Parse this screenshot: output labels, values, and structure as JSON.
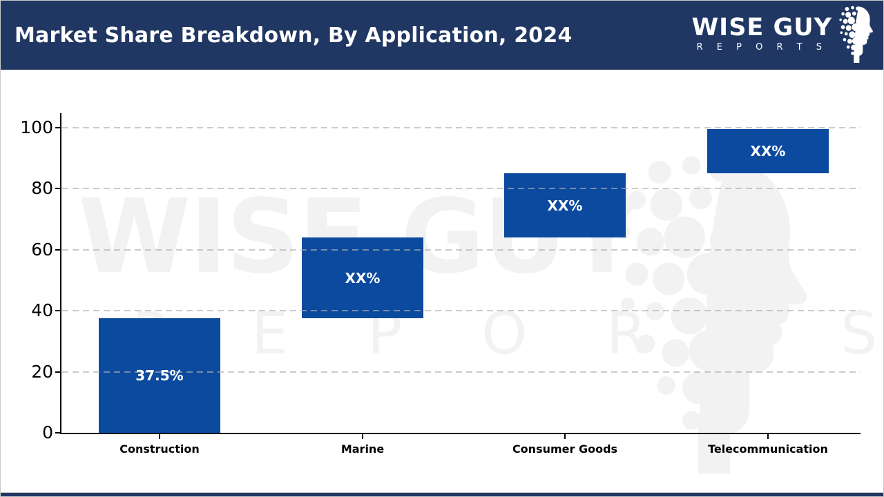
{
  "header": {
    "title": "Market Share Breakdown, By Application, 2024",
    "logo": {
      "line1": "WISE GUY",
      "line2": "R E P O R T S"
    }
  },
  "watermark": {
    "line1": "WISE GUY",
    "line2": "R E P O R T S"
  },
  "colors": {
    "header_bg": "#203763",
    "footer_bg": "#203763",
    "bar": "#0b4a9e",
    "bar_label": "#ffffff",
    "axis": "#000000",
    "tick_label": "#000000",
    "grid": "#c4c4c4",
    "watermark": "#f2f2f2"
  },
  "chart_data": {
    "type": "bar",
    "subtype": "waterfall-floating-bars",
    "title": "Market Share Breakdown, By Application, 2024",
    "categories": [
      "Construction",
      "Marine",
      "Consumer Goods",
      "Telecommunication"
    ],
    "segments": [
      {
        "category": "Construction",
        "start": 0,
        "end": 37.5,
        "label": "37.5%"
      },
      {
        "category": "Marine",
        "start": 37.5,
        "end": 64,
        "label": "XX%"
      },
      {
        "category": "Consumer Goods",
        "start": 64,
        "end": 85,
        "label": "XX%"
      },
      {
        "category": "Telecommunication",
        "start": 85,
        "end": 99.5,
        "label": "XX%"
      }
    ],
    "xlabel": "",
    "ylabel": "",
    "ylim": [
      0,
      100
    ],
    "yticks": [
      0,
      20,
      40,
      60,
      80,
      100
    ],
    "grid": "horizontal-dashed",
    "legend": "none"
  }
}
